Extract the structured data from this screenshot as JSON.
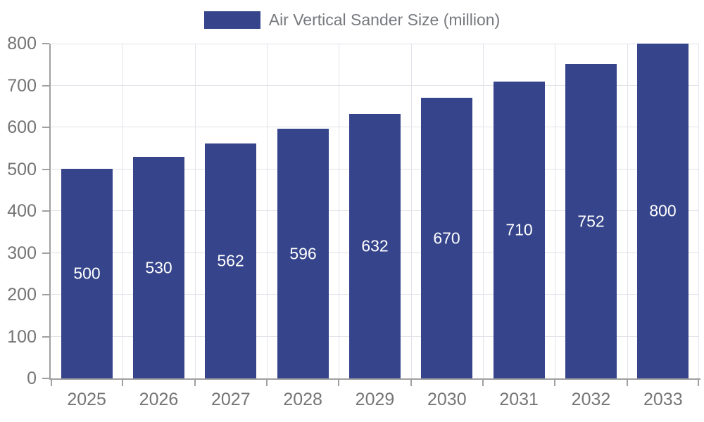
{
  "title": "Air Vertical Sander Size (million)",
  "legend": {
    "label": "Air Vertical Sander Size (million)"
  },
  "colors": {
    "bar": "#36458B",
    "grid": "#E2E2EA",
    "axis": "#A0A0A0",
    "tick_text": "#757575",
    "value_text": "#FFFFFF",
    "legend_text": "#76797E",
    "background": "#FFFFFF"
  },
  "chart_data": {
    "type": "bar",
    "categories": [
      "2025",
      "2026",
      "2027",
      "2028",
      "2029",
      "2030",
      "2031",
      "2032",
      "2033"
    ],
    "values": [
      500,
      530,
      562,
      596,
      632,
      670,
      710,
      752,
      800
    ],
    "title": "Air Vertical Sander Size (million)",
    "xlabel": "",
    "ylabel": "",
    "ylim": [
      0,
      800
    ],
    "ytick_interval": 100,
    "grid": true,
    "legend_position": "top",
    "value_label_position": "inside-center"
  }
}
